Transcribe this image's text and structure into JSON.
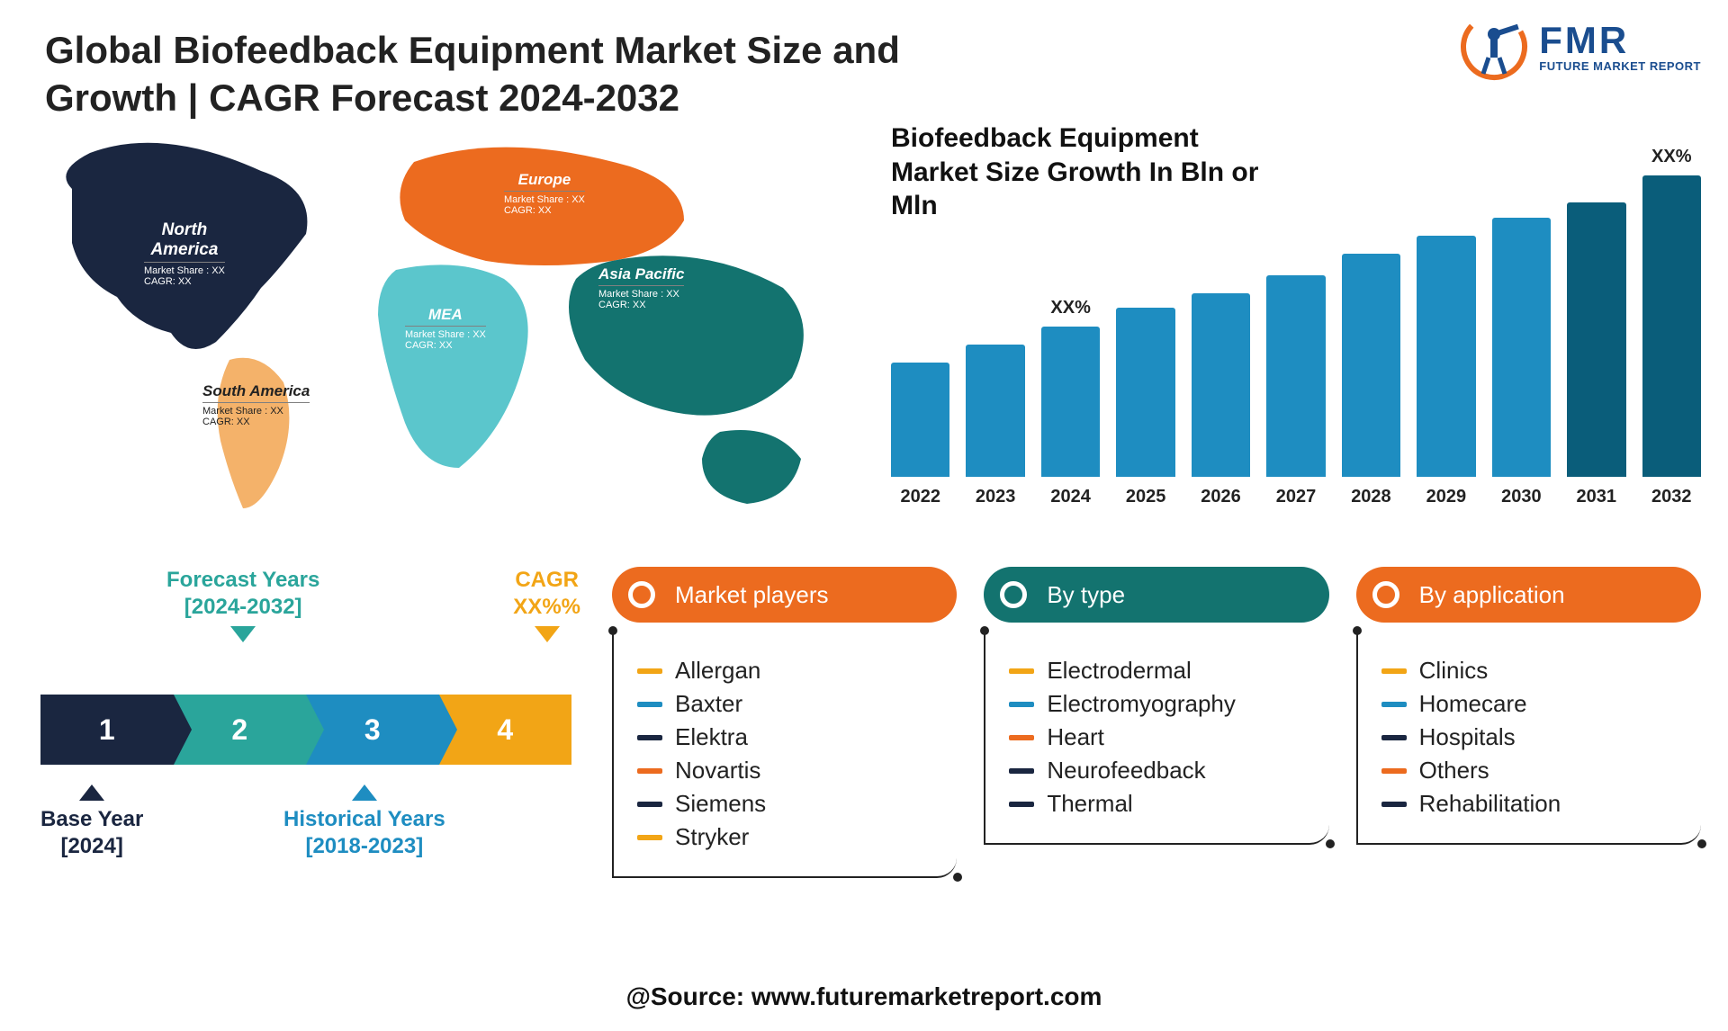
{
  "title": "Global Biofeedback Equipment Market Size and Growth | CAGR Forecast 2024-2032",
  "logo": {
    "abbr": "FMR",
    "sub": "FUTURE MARKET REPORT"
  },
  "colors": {
    "orange": "#ec6b1f",
    "teal": "#13736f",
    "navy": "#1a2640",
    "teal_light": "#2aa59b",
    "blue": "#1e8dc1",
    "amber": "#f2a516",
    "cyan": "#5bc6cc",
    "bar": "#1e8dc1",
    "bar_dark": "#0a5d7a",
    "text": "#222222"
  },
  "map": {
    "regions": [
      {
        "name": "North America",
        "share": "Market Share : XX",
        "cagr": "CAGR: XX",
        "color": "#1a2640"
      },
      {
        "name": "South America",
        "share": "Market Share : XX",
        "cagr": "CAGR: XX",
        "color": "#f4b26a"
      },
      {
        "name": "Europe",
        "share": "Market Share : XX",
        "cagr": "CAGR: XX",
        "color": "#ec6b1f"
      },
      {
        "name": "MEA",
        "share": "Market Share : XX",
        "cagr": "CAGR: XX",
        "color": "#5bc6cc"
      },
      {
        "name": "Asia Pacific",
        "share": "Market Share : XX",
        "cagr": "CAGR: XX",
        "color": "#13736f"
      }
    ]
  },
  "chart": {
    "title": "Biofeedback Equipment Market Size Growth In Bln or Mln",
    "years": [
      "2022",
      "2023",
      "2024",
      "2025",
      "2026",
      "2027",
      "2028",
      "2029",
      "2030",
      "2031",
      "2032"
    ],
    "values": [
      38,
      44,
      50,
      56,
      61,
      67,
      74,
      80,
      86,
      91,
      100
    ],
    "dark_from_index": 9,
    "annotations": {
      "2": "XX%",
      "10": "XX%"
    },
    "bar_color": "#1e8dc1",
    "bar_dark_color": "#0a5d7a",
    "label_fontsize": 20
  },
  "timeline": {
    "segments": [
      {
        "n": "1",
        "color": "#1a2640"
      },
      {
        "n": "2",
        "color": "#2aa59b"
      },
      {
        "n": "3",
        "color": "#1e8dc1"
      },
      {
        "n": "4",
        "color": "#f2a516"
      }
    ],
    "captions": {
      "forecast": {
        "t1": "Forecast Years",
        "t2": "[2024-2032]",
        "color": "#2aa59b"
      },
      "cagr": {
        "t1": "CAGR",
        "t2": "XX%%",
        "color": "#f2a516"
      },
      "base": {
        "t1": "Base Year",
        "t2": "[2024]",
        "color": "#1a2640"
      },
      "hist": {
        "t1": "Historical Years",
        "t2": "[2018-2023]",
        "color": "#1e8dc1"
      }
    }
  },
  "segments": [
    {
      "title": "Market players",
      "pill_color": "#ec6b1f",
      "items": [
        {
          "label": "Allergan",
          "c": "#f2a516"
        },
        {
          "label": "Baxter",
          "c": "#1e8dc1"
        },
        {
          "label": "Elektra",
          "c": "#1a2640"
        },
        {
          "label": "Novartis",
          "c": "#ec6b1f"
        },
        {
          "label": "Siemens",
          "c": "#1a2640"
        },
        {
          "label": "Stryker",
          "c": "#f2a516"
        }
      ]
    },
    {
      "title": "By type",
      "pill_color": "#13736f",
      "items": [
        {
          "label": "Electrodermal",
          "c": "#f2a516"
        },
        {
          "label": "Electromyography",
          "c": "#1e8dc1"
        },
        {
          "label": "Heart",
          "c": "#ec6b1f"
        },
        {
          "label": "Neurofeedback",
          "c": "#1a2640"
        },
        {
          "label": "Thermal",
          "c": "#1a2640"
        }
      ]
    },
    {
      "title": "By application",
      "pill_color": "#ec6b1f",
      "items": [
        {
          "label": "Clinics",
          "c": "#f2a516"
        },
        {
          "label": "Homecare",
          "c": "#1e8dc1"
        },
        {
          "label": "Hospitals",
          "c": "#1a2640"
        },
        {
          "label": "Others",
          "c": "#ec6b1f"
        },
        {
          "label": "Rehabilitation",
          "c": "#1a2640"
        }
      ]
    }
  ],
  "source": "@Source: www.futuremarketreport.com"
}
